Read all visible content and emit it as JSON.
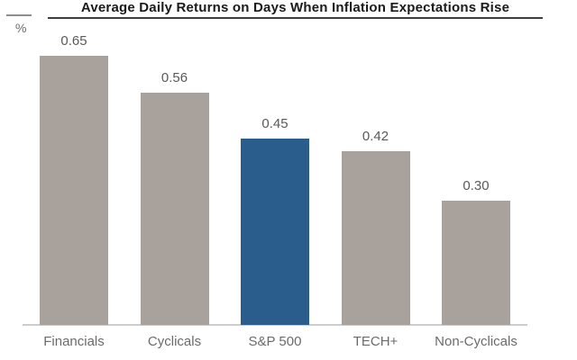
{
  "chart_data": {
    "type": "bar",
    "title": "Average Daily Returns on Days When Inflation Expectations Rise",
    "ylabel": "%",
    "categories": [
      "Financials",
      "Cyclicals",
      "S&P 500",
      "TECH+",
      "Non-Cyclicals"
    ],
    "values": [
      0.65,
      0.56,
      0.45,
      0.42,
      0.3
    ],
    "value_labels": [
      "0.65",
      "0.56",
      "0.45",
      "0.42",
      "0.30"
    ],
    "highlight_index": 2,
    "ylim": [
      0,
      0.72
    ],
    "grid": false,
    "legend": false,
    "colors": {
      "bar": "#a9a19b",
      "highlight": "#2a5d8c",
      "title_text": "#1a1a1a",
      "title_underline": "#3d3d3d",
      "value_label": "#595959",
      "category_label": "#6b6b6b",
      "baseline": "#cccccc",
      "unit_label": "#6b6b6b"
    }
  }
}
